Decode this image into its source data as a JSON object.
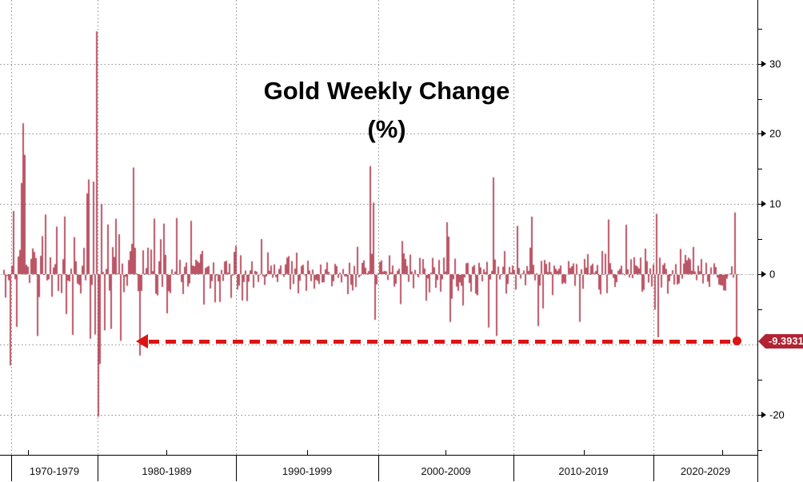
{
  "title": {
    "line1": "Gold Weekly Change",
    "line2": "(%)"
  },
  "annotation": {
    "badge_label": "-9.3931",
    "value": -9.3931
  },
  "colors": {
    "bar": "#a51d33",
    "arrow": "#dc1414",
    "badge_bg": "#b22433",
    "badge_text": "#ffffff",
    "grid": "#8e8e8e",
    "axis": "#000000",
    "zero_overlay": "#d4d4d4",
    "background": "#ffffff"
  },
  "chart_data": {
    "type": "bar",
    "title": "Gold Weekly Change (%)",
    "xlabel": "",
    "ylabel": "%",
    "grid": true,
    "x_decades": [
      "1970-1979",
      "1980-1989",
      "1990-1999",
      "2000-2009",
      "2010-2019",
      "2020-2029"
    ],
    "y_ticks": [
      {
        "value": 30,
        "label": "30"
      },
      {
        "value": 20,
        "label": "20"
      },
      {
        "value": 10,
        "label": "10"
      },
      {
        "value": 0,
        "label": "0"
      },
      {
        "value": -10,
        "label": ""
      },
      {
        "value": -20,
        "label": "-20"
      }
    ],
    "y_minor_tick_values": [
      35,
      25,
      15,
      5,
      -5,
      -15,
      -25
    ],
    "ylim_visible": [
      -25.7,
      39.1
    ],
    "bar_series": {
      "name": "gold-weekly-percent-change",
      "n_bars": 459,
      "seed": 99,
      "mean_drift": 0.1,
      "random_clamp": [
        -12.5,
        13.5
      ],
      "volatility_envelope": [
        [
          0,
          2.4
        ],
        [
          0.03,
          3.0
        ],
        [
          0.06,
          2.6
        ],
        [
          0.1,
          3.2
        ],
        [
          0.125,
          4.4
        ],
        [
          0.15,
          3.2
        ],
        [
          0.2,
          2.6
        ],
        [
          0.27,
          2.1
        ],
        [
          0.3166,
          1.8
        ],
        [
          0.4,
          1.4
        ],
        [
          0.47,
          1.5
        ],
        [
          0.5109,
          1.8
        ],
        [
          0.58,
          2.0
        ],
        [
          0.6954,
          1.9
        ],
        [
          0.78,
          1.7
        ],
        [
          0.8865,
          1.8
        ],
        [
          0.95,
          1.7
        ],
        [
          1,
          1.9
        ]
      ],
      "notable_points": [
        {
          "f": 0.0087,
          "v": -13.0
        },
        {
          "f": 0.0131,
          "v": 9.0
        },
        {
          "f": 0.0175,
          "v": -7.5
        },
        {
          "f": 0.024,
          "v": 13.0
        },
        {
          "f": 0.0262,
          "v": 21.5
        },
        {
          "f": 0.0284,
          "v": 17.0
        },
        {
          "f": 0.0459,
          "v": -8.8
        },
        {
          "f": 0.0568,
          "v": 8.5
        },
        {
          "f": 0.1135,
          "v": 11.5
        },
        {
          "f": 0.1179,
          "v": -9.2
        },
        {
          "f": 0.1223,
          "v": 13.2
        },
        {
          "f": 0.1245,
          "v": -8.6
        },
        {
          "f": 0.1266,
          "v": 34.6
        },
        {
          "f": 0.1288,
          "v": -20.3
        },
        {
          "f": 0.131,
          "v": -12.8
        },
        {
          "f": 0.1332,
          "v": 10.0
        },
        {
          "f": 0.1376,
          "v": -8.0
        },
        {
          "f": 0.1463,
          "v": -7.8
        },
        {
          "f": 0.1528,
          "v": 7.9
        },
        {
          "f": 0.1594,
          "v": -9.5
        },
        {
          "f": 0.1769,
          "v": 15.2
        },
        {
          "f": 0.1856,
          "v": -11.6
        },
        {
          "f": 0.2183,
          "v": 7.2
        },
        {
          "f": 0.2358,
          "v": 8.0
        },
        {
          "f": 0.2554,
          "v": 7.6
        },
        {
          "f": 0.5,
          "v": 15.4
        },
        {
          "f": 0.5044,
          "v": 10.2
        },
        {
          "f": 0.5066,
          "v": -6.5
        },
        {
          "f": 0.605,
          "v": 7.4
        },
        {
          "f": 0.61,
          "v": -6.8
        },
        {
          "f": 0.662,
          "v": -7.6
        },
        {
          "f": 0.669,
          "v": 13.8
        },
        {
          "f": 0.672,
          "v": -8.8
        },
        {
          "f": 0.721,
          "v": 8.2
        },
        {
          "f": 0.7293,
          "v": -7.4
        },
        {
          "f": 0.786,
          "v": -6.8
        },
        {
          "f": 0.826,
          "v": 7.8
        },
        {
          "f": 0.891,
          "v": 8.6
        },
        {
          "f": 0.8934,
          "v": -9.0
        },
        {
          "f": 0.9978,
          "v": 8.8
        },
        {
          "f": 1.0,
          "v": -9.3931
        }
      ]
    },
    "annotation_line": {
      "label": "-9.3931",
      "value": -9.3931,
      "style": "dashed-red-horizontal-arrow-pointing-left",
      "from_last_bar": true
    }
  }
}
